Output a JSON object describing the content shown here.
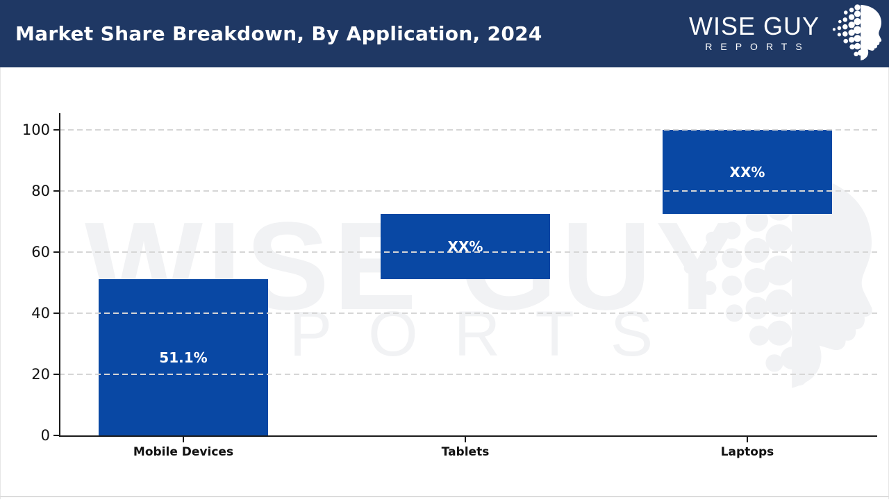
{
  "header": {
    "title": "Market Share Breakdown, By Application, 2024",
    "bg_color": "#1f3864",
    "logo": {
      "line1": "WISE GUY",
      "line2": "REPORTS"
    }
  },
  "watermark": {
    "line1": "WISE GUY",
    "line2": "REPORTS"
  },
  "chart_data": {
    "type": "bar",
    "variant": "floating-segment-percentage",
    "title": "Market Share Breakdown, By Application, 2024",
    "categories": [
      "Mobile Devices",
      "Tablets",
      "Laptops"
    ],
    "series": [
      {
        "name": "Mobile Devices",
        "start": 0,
        "end": 51.1,
        "label": "51.1%"
      },
      {
        "name": "Tablets",
        "start": 51.1,
        "end": 72.5,
        "label": "XX%"
      },
      {
        "name": "Laptops",
        "start": 72.5,
        "end": 100,
        "label": "XX%"
      }
    ],
    "yticks": [
      0,
      20,
      40,
      60,
      80,
      100
    ],
    "ylim": [
      0,
      105.5
    ],
    "xlabel": "",
    "ylabel": "",
    "bar_color": "#0948a4",
    "grid": {
      "horizontal": true,
      "style": "dashed",
      "color": "#d6d6d6",
      "above_bars": true
    },
    "legend_position": "none",
    "value_label_color": "#ffffff"
  }
}
